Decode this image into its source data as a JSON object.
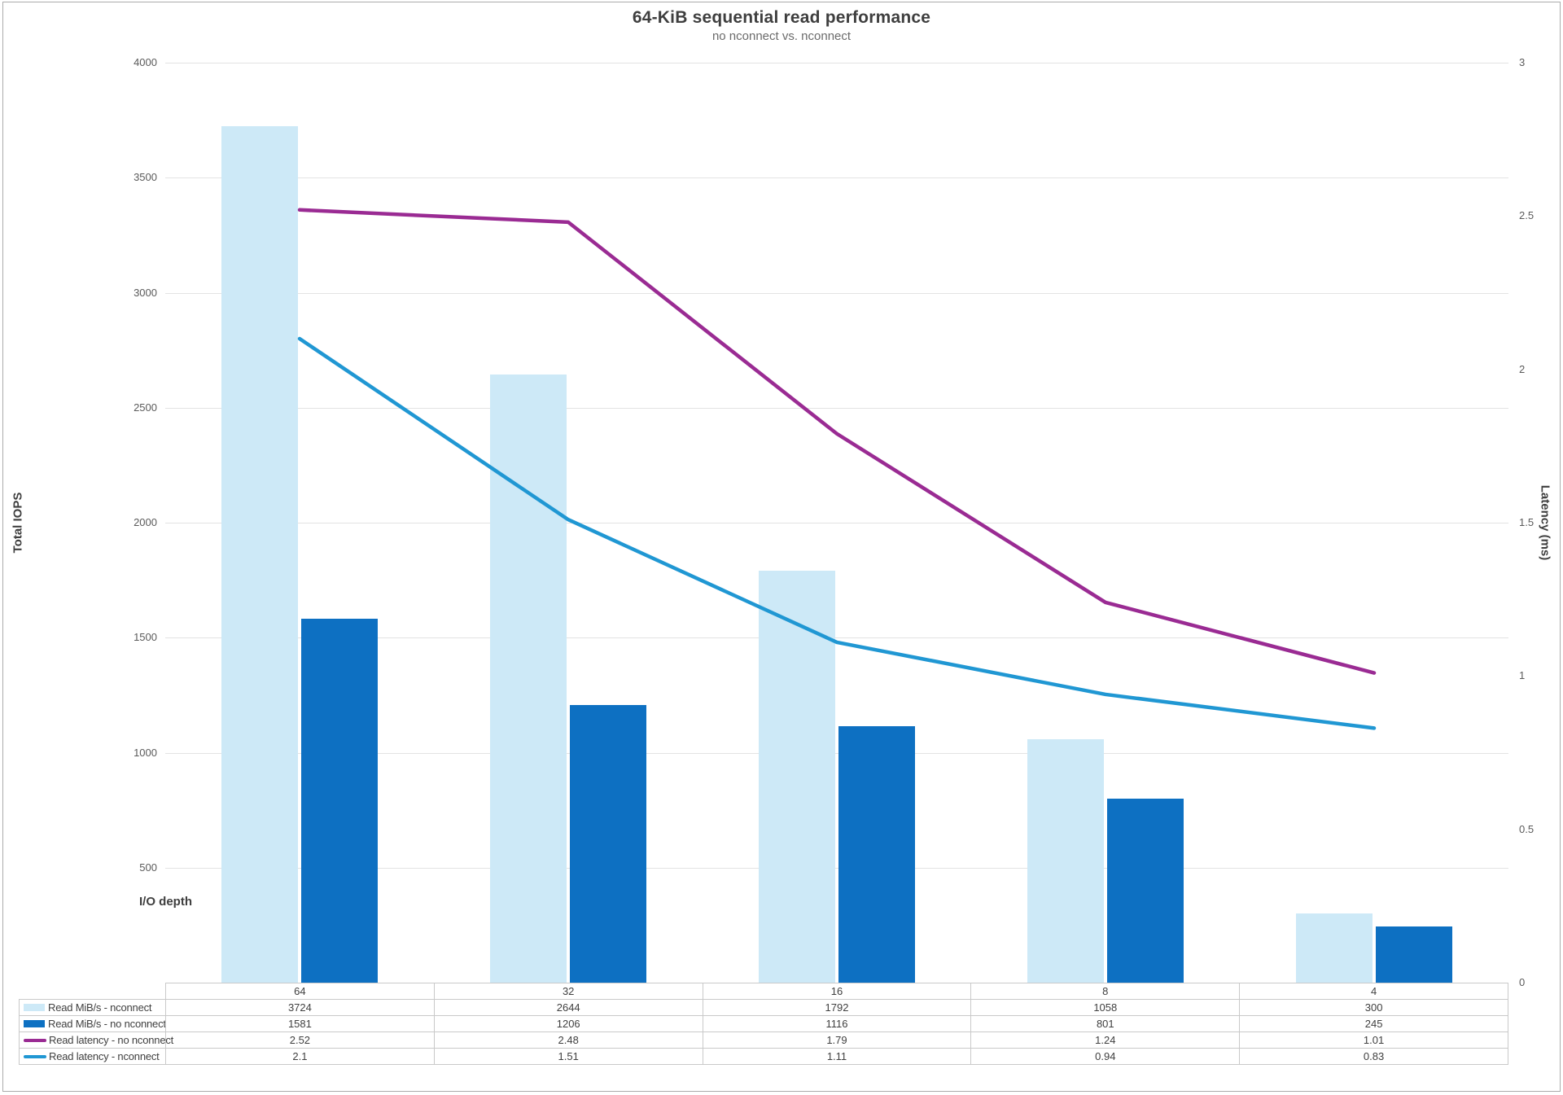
{
  "chart_data": {
    "type": "combo-bar-line",
    "title": "64-KiB sequential read performance",
    "subtitle": "no nconnect vs. nconnect",
    "x_axis": {
      "title": "I/O depth",
      "categories": [
        "64",
        "32",
        "16",
        "8",
        "4"
      ]
    },
    "left_axis": {
      "title": "Total IOPS",
      "min": 0,
      "max": 4000,
      "ticks": [
        4000,
        3500,
        3000,
        2500,
        2000,
        1500,
        1000,
        500
      ]
    },
    "right_axis": {
      "title": "Latency (ms)",
      "min": 0,
      "max": 3,
      "ticks": [
        3,
        2.5,
        2,
        1.5,
        1,
        0.5,
        0
      ]
    },
    "series": [
      {
        "name": "Read MiB/s - nconnect",
        "type": "bar",
        "axis": "left",
        "color": "#CDE9F7",
        "values": [
          3724,
          2644,
          1792,
          1058,
          300
        ]
      },
      {
        "name": "Read MiB/s - no nconnect",
        "type": "bar",
        "axis": "left",
        "color": "#0D70C2",
        "values": [
          1581,
          1206,
          1116,
          801,
          245
        ]
      },
      {
        "name": "Read latency - no nconnect",
        "type": "line",
        "axis": "right",
        "color": "#9A2B93",
        "values": [
          2.52,
          2.48,
          1.79,
          1.24,
          1.01
        ]
      },
      {
        "name": "Read latency - nconnect",
        "type": "line",
        "axis": "right",
        "color": "#2097D3",
        "values": [
          2.1,
          1.51,
          1.11,
          0.94,
          0.83
        ]
      }
    ],
    "legend_position": "bottom-table",
    "grid": "horizontal-only"
  }
}
